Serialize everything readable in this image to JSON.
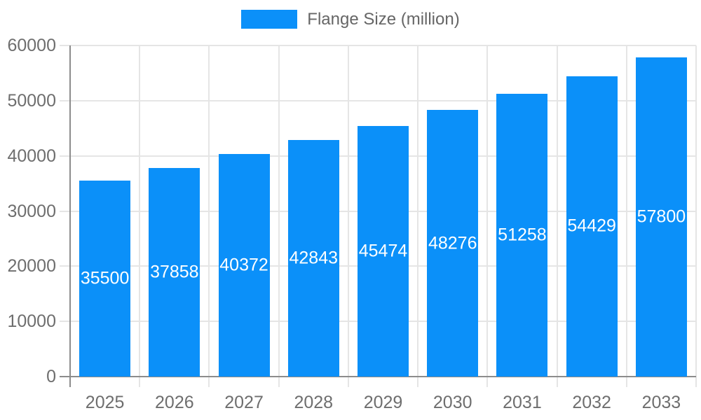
{
  "chart_data": {
    "type": "bar",
    "title": "",
    "legend": "Flange Size (million)",
    "legend_position": "top",
    "categories": [
      "2025",
      "2026",
      "2027",
      "2028",
      "2029",
      "2030",
      "2031",
      "2032",
      "2033"
    ],
    "values": [
      35500,
      37858,
      40372,
      42843,
      45474,
      48276,
      51258,
      54429,
      57800
    ],
    "value_labels_shown": true,
    "xlabel": "",
    "ylabel": "",
    "ylim": [
      0,
      60000
    ],
    "ytick_step": 10000,
    "yticks": [
      "0",
      "10000",
      "20000",
      "30000",
      "40000",
      "50000",
      "60000"
    ],
    "grid": true,
    "colors": {
      "bar": "#0b90f9",
      "grid": "#e5e5e5",
      "axis": "#8c8c8c",
      "tick_text": "#6e6e6e",
      "legend_text": "#666666",
      "value_label": "#ffffff",
      "background": "#ffffff"
    }
  }
}
